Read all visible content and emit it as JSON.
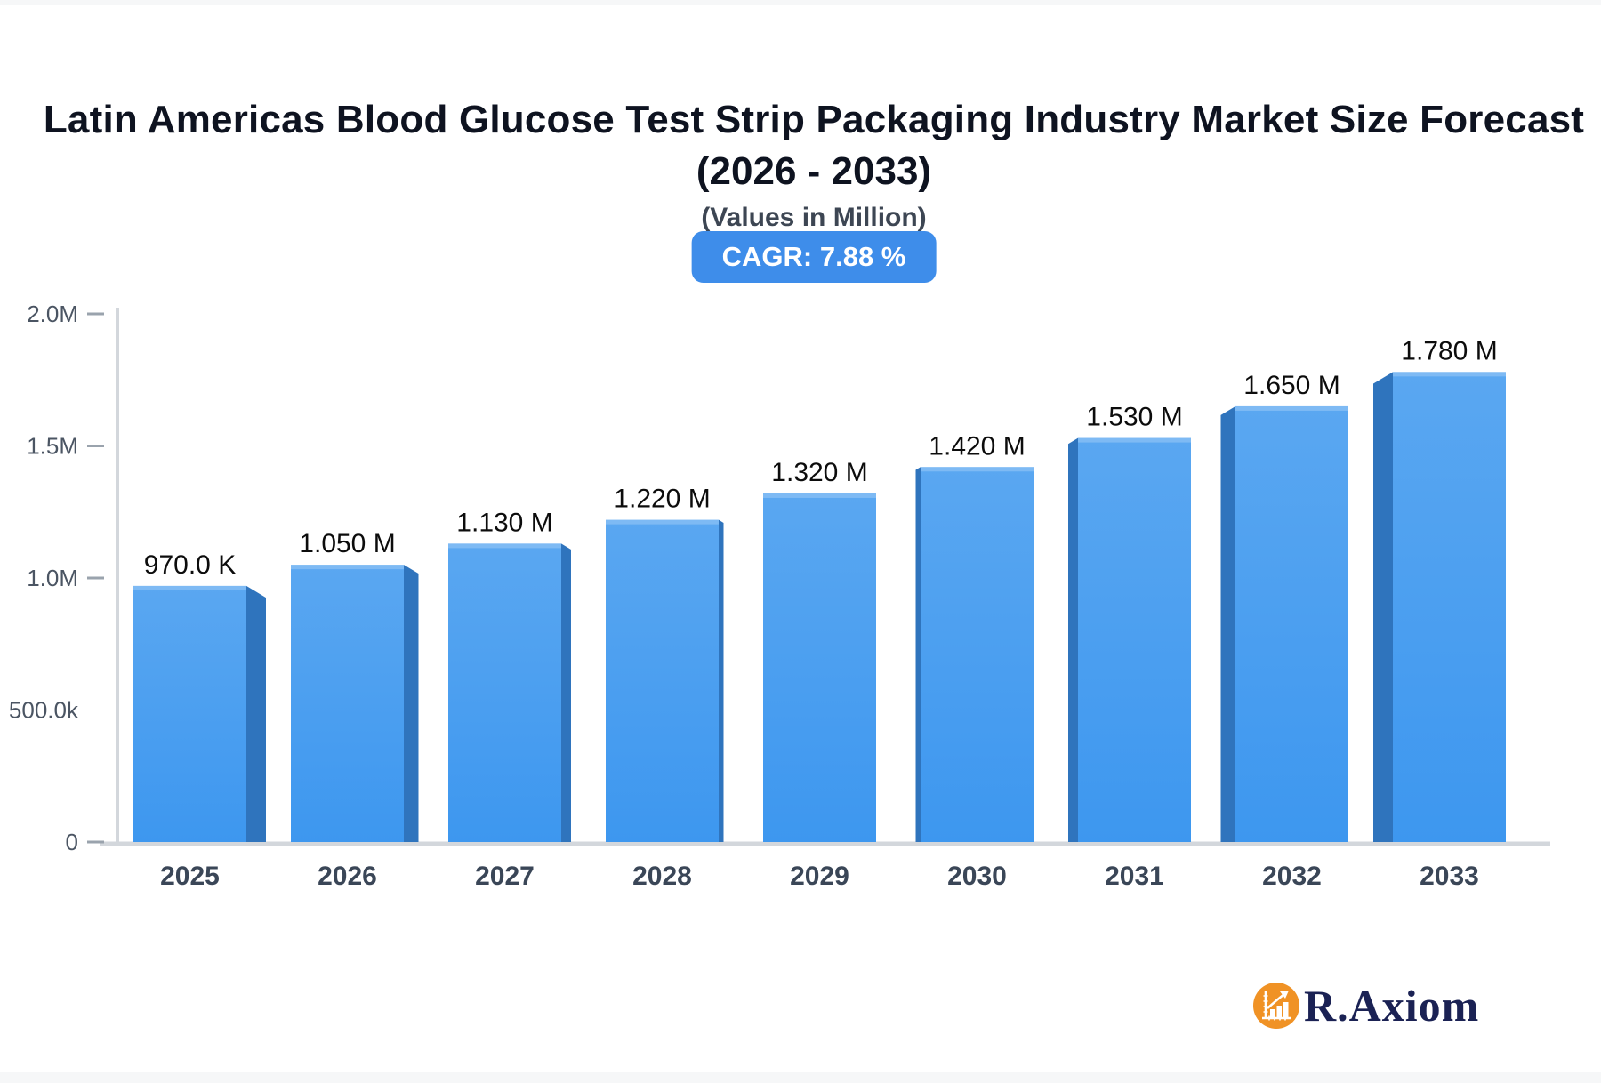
{
  "header": {
    "title_line1": "Latin Americas Blood Glucose Test Strip Packaging Industry Market Size Forecast",
    "title_line2": "(2026 - 2033)",
    "subtitle": "(Values in Million)",
    "cagr_badge": "CAGR: 7.88 %",
    "badge_color": "#3e8dea"
  },
  "chart_data": {
    "type": "bar",
    "title": "Latin Americas Blood Glucose Test Strip Packaging Industry Market Size Forecast (2026 - 2033)",
    "subtitle": "(Values in Million)",
    "cagr_percent": 7.88,
    "categories": [
      "2025",
      "2026",
      "2027",
      "2028",
      "2029",
      "2030",
      "2031",
      "2032",
      "2033"
    ],
    "values": [
      970000,
      1050000,
      1130000,
      1220000,
      1320000,
      1420000,
      1530000,
      1650000,
      1780000
    ],
    "value_labels": [
      "970.0 K",
      "1.050 M",
      "1.130 M",
      "1.220 M",
      "1.320 M",
      "1.420 M",
      "1.530 M",
      "1.650 M",
      "1.780 M"
    ],
    "xlabel": "",
    "ylabel": "",
    "ylim": [
      0,
      2000000
    ],
    "yticks": [
      {
        "label": "0",
        "value": 0,
        "dash": true
      },
      {
        "label": "500.0k",
        "value": 500000,
        "dash": false
      },
      {
        "label": "1.0M",
        "value": 1000000,
        "dash": true
      },
      {
        "label": "1.5M",
        "value": 1500000,
        "dash": true
      },
      {
        "label": "2.0M",
        "value": 2000000,
        "dash": true
      }
    ],
    "grid": false,
    "legend": "none",
    "colors": {
      "bar_face_top": "#5aa7f1",
      "bar_face_bottom": "#3d97ef",
      "bar_side": "#2f74bd",
      "bar_top_highlight": "#9ccaf6",
      "value_label": "#0c0c0c",
      "axis_line": "#d3d7dc",
      "tick_dash": "#9aa3ad",
      "y_tick_label": "#4b5563",
      "x_tick_label": "#3a4657"
    }
  },
  "branding": {
    "logo_text": "R.Axiom",
    "logo_icon": "bar-chart-growth-icon",
    "logo_circle_color": "#f09225",
    "logo_text_color": "#1b2254"
  }
}
